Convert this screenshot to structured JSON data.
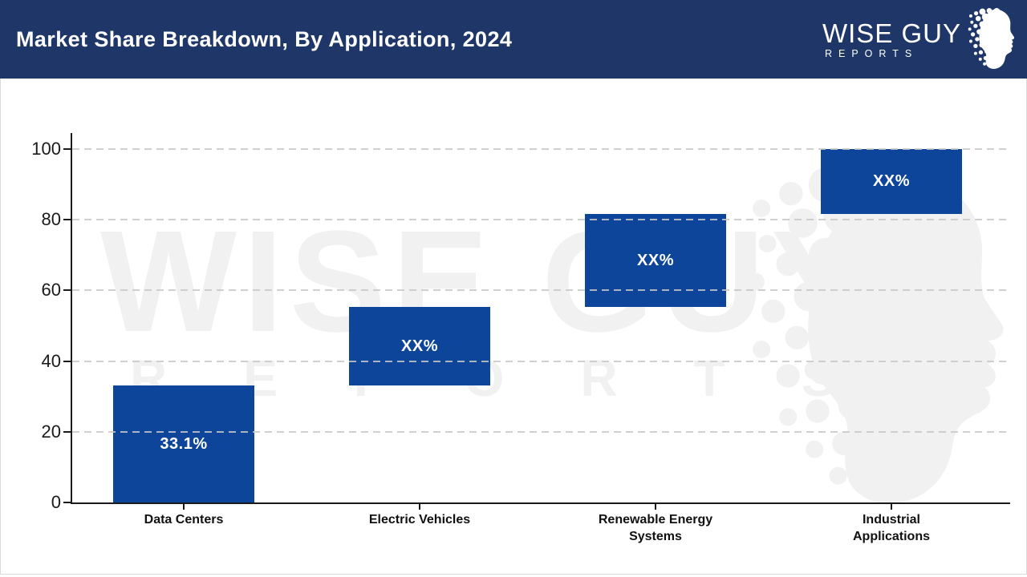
{
  "header": {
    "title": "Market Share Breakdown, By Application, 2024",
    "bg_color": "#1f3768",
    "logo": {
      "wordmark": "WISE GUY",
      "sub": "REPORTS"
    }
  },
  "watermark": {
    "wordmark": "WISE GUY",
    "sub": "REPORTS"
  },
  "chart_data": {
    "type": "bar",
    "subtype": "waterfall",
    "title": "Market Share Breakdown, By Application, 2024",
    "categories": [
      "Data Centers",
      "Electric Vehicles",
      "Renewable Energy Systems",
      "Industrial Applications"
    ],
    "category_lines": [
      [
        "Data Centers"
      ],
      [
        "Electric Vehicles"
      ],
      [
        "Renewable Energy",
        "Systems"
      ],
      [
        "Industrial",
        "Applications"
      ]
    ],
    "bars": [
      {
        "category": "Data Centers",
        "start": 0,
        "end": 33.1,
        "label": "33.1%"
      },
      {
        "category": "Electric Vehicles",
        "start": 33.1,
        "end": 55.3,
        "label": "XX%"
      },
      {
        "category": "Renewable Energy Systems",
        "start": 55.3,
        "end": 81.6,
        "label": "XX%"
      },
      {
        "category": "Industrial Applications",
        "start": 81.6,
        "end": 100,
        "label": "XX%"
      }
    ],
    "yticks": [
      0,
      20,
      40,
      60,
      80,
      100
    ],
    "ylim": [
      0,
      100
    ],
    "xlabel": "",
    "ylabel": "",
    "legend": "none",
    "grid": "horizontal-dashed",
    "bar_color": "#0c459a",
    "bar_label_color": "#ffffff",
    "axis_color": "#1a1a1a",
    "gridline_color": "#d8d8d8"
  }
}
